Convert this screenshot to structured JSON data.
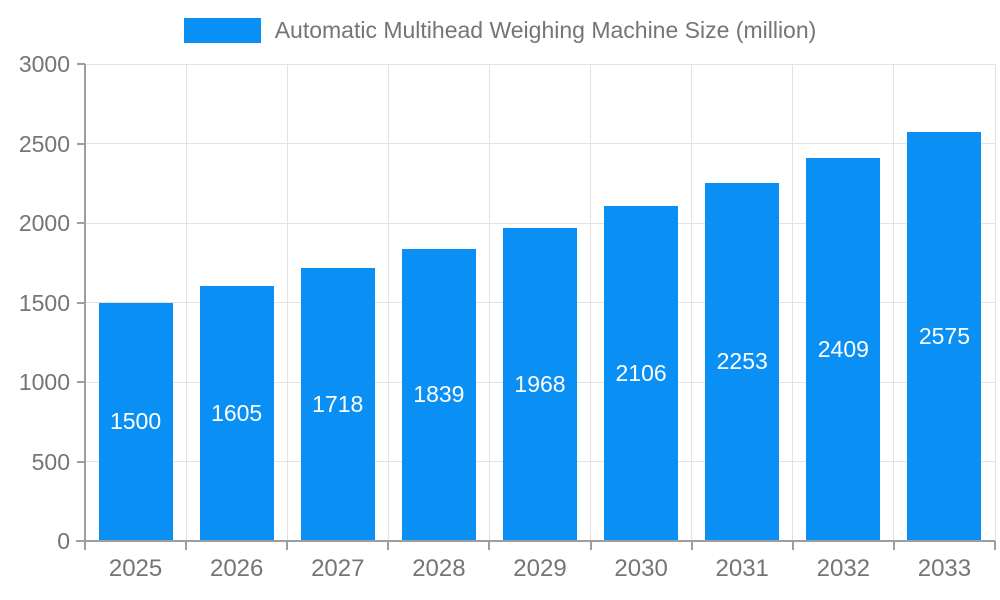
{
  "legend": {
    "label": "Automatic Multihead Weighing Machine Size (million)"
  },
  "chart_data": {
    "type": "bar",
    "title": "Automatic Multihead Weighing Machine Size (million)",
    "categories": [
      "2025",
      "2026",
      "2027",
      "2028",
      "2029",
      "2030",
      "2031",
      "2032",
      "2033"
    ],
    "values": [
      1500,
      1605,
      1718,
      1839,
      1968,
      2106,
      2253,
      2409,
      2575
    ],
    "value_labels": [
      "1500",
      "1605",
      "1718",
      "1839",
      "1968",
      "2106",
      "2253",
      "2409",
      "2575"
    ],
    "xlabel": "",
    "ylabel": "",
    "ylim": [
      0,
      3000
    ],
    "yticks": [
      0,
      500,
      1000,
      1500,
      2000,
      2500,
      3000
    ],
    "ytick_labels": [
      "0",
      "500",
      "1000",
      "1500",
      "2000",
      "2500",
      "3000"
    ],
    "grid": true,
    "legend_position": "top",
    "bar_color": "#0a90f5",
    "bar_label_color": "#ffffff",
    "axis_color": "#9e9e9e",
    "grid_color": "#e3e3e3",
    "text_color": "#757575"
  }
}
